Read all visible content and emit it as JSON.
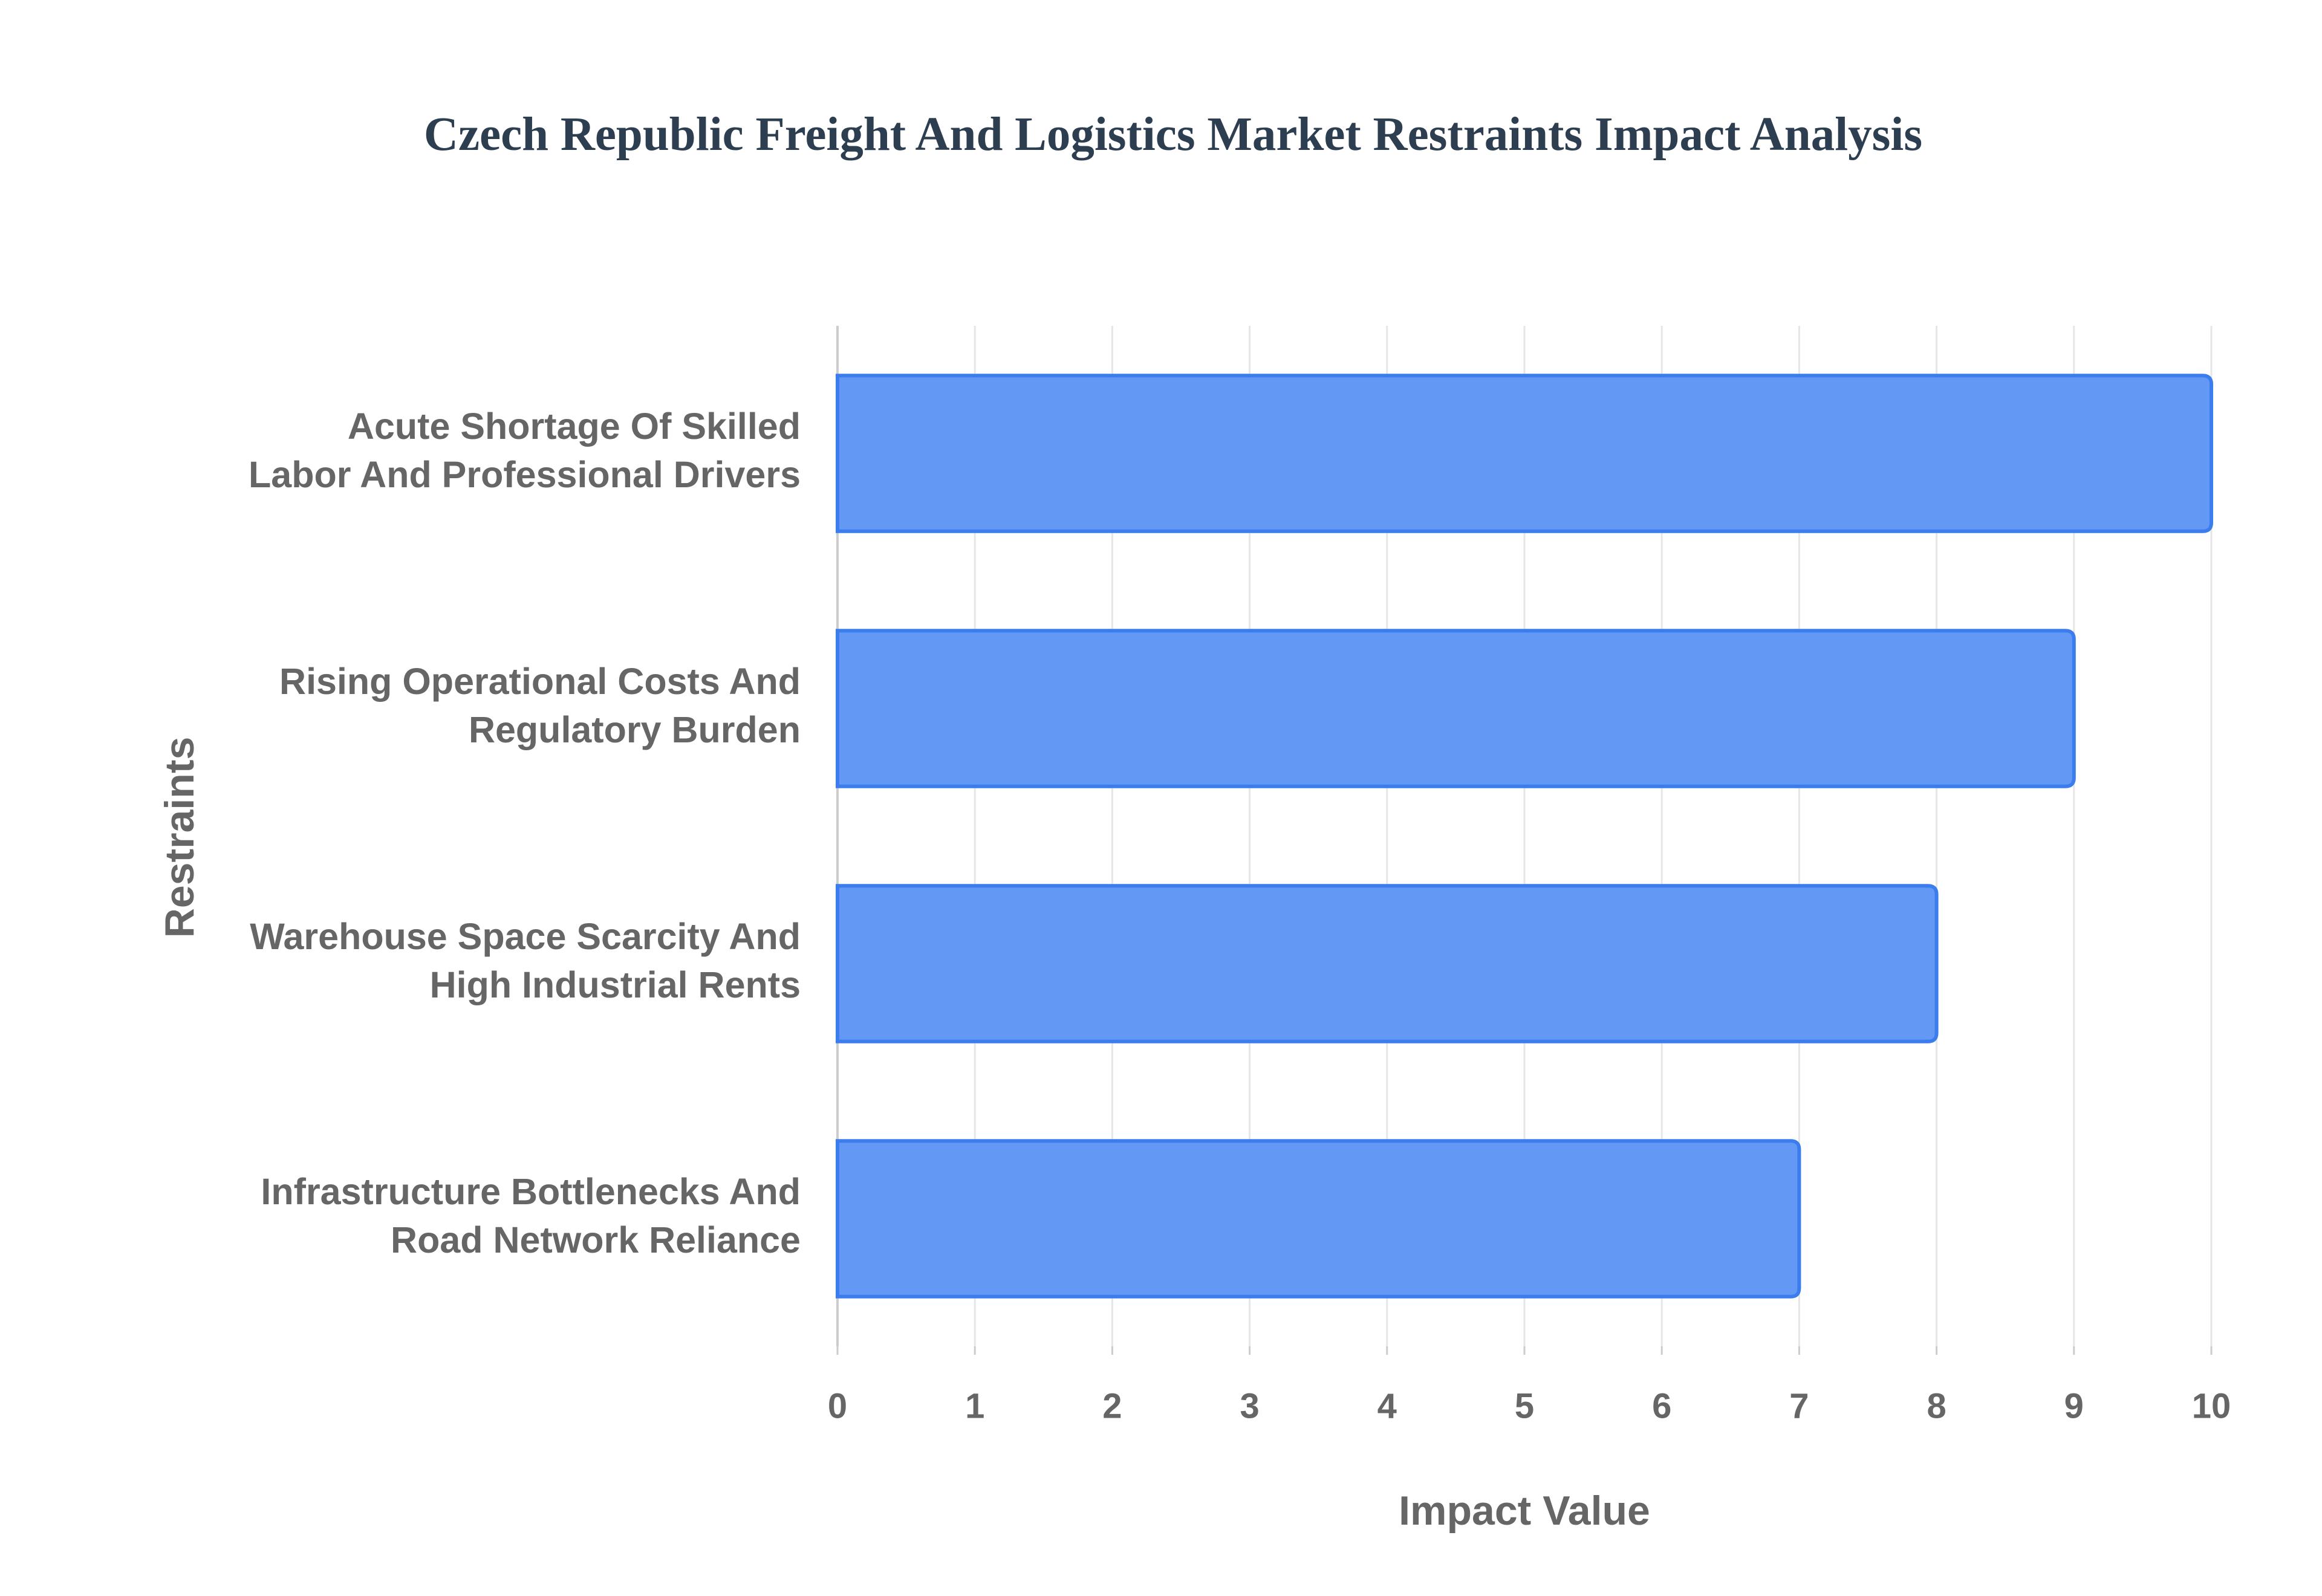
{
  "chart_data": {
    "type": "hbar",
    "title": "Czech Republic Freight And Logistics Market Restraints Impact Analysis",
    "x_label": "Impact Value",
    "y_label": "Restraints",
    "categories": [
      "Acute Shortage Of Skilled Labor And Professional Drivers",
      "Rising Operational Costs And Regulatory Burden",
      "Warehouse Space Scarcity And High Industrial Rents",
      "Infrastructure Bottlenecks And Road Network Reliance"
    ],
    "values": [
      10,
      9,
      8,
      7
    ],
    "color": "#6399f5",
    "xlim": [
      0,
      10
    ],
    "xticks": [
      0,
      1,
      2,
      3,
      4,
      5,
      6,
      7,
      8,
      9,
      10
    ],
    "grid": true
  }
}
